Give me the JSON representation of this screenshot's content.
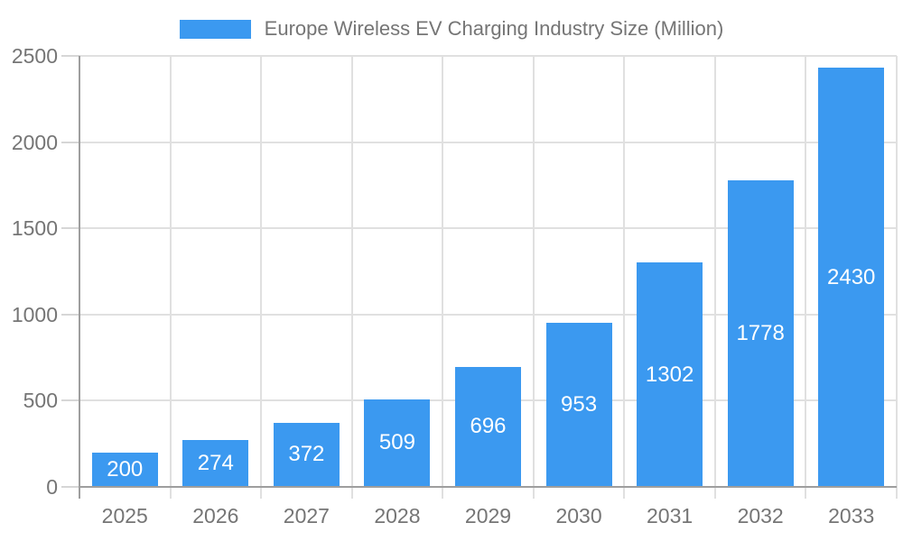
{
  "legend": {
    "label": "Europe Wireless EV Charging Industry Size (Million)"
  },
  "chart_data": {
    "type": "bar",
    "title": "Europe Wireless EV Charging Industry Size (Million)",
    "series_name": "Europe Wireless EV Charging Industry Size (Million)",
    "categories": [
      "2025",
      "2026",
      "2027",
      "2028",
      "2029",
      "2030",
      "2031",
      "2032",
      "2033"
    ],
    "values": [
      200,
      274,
      372,
      509,
      696,
      953,
      1302,
      1778,
      2430
    ],
    "xlabel": "",
    "ylabel": "",
    "ylim": [
      0,
      2500
    ],
    "yticks": [
      0,
      500,
      1000,
      1500,
      2000,
      2500
    ],
    "grid": true,
    "legend_position": "top",
    "bar_labels_visible": true,
    "colors": {
      "bar": "#3b99f0",
      "bar_label": "#ffffff",
      "axis_line": "#9e9e9e",
      "gridline": "#e0e0e0",
      "tick": "#d6d6d6",
      "axis_text": "#757575",
      "legend_text": "#757575",
      "background": "#ffffff"
    }
  }
}
